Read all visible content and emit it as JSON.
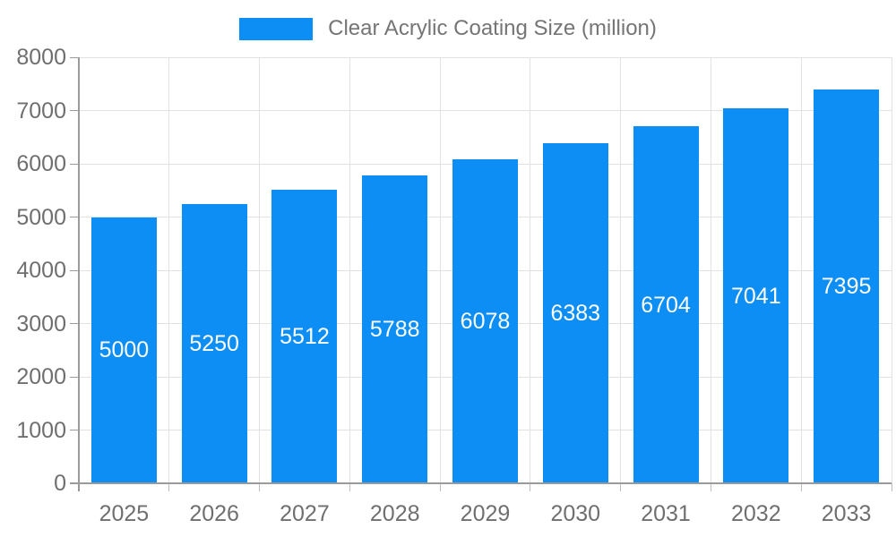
{
  "legend": {
    "label": "Clear Acrylic Coating Size (million)"
  },
  "chart_data": {
    "type": "bar",
    "title": "Clear Acrylic Coating Size (million)",
    "categories": [
      "2025",
      "2026",
      "2027",
      "2028",
      "2029",
      "2030",
      "2031",
      "2032",
      "2033"
    ],
    "values": [
      5000,
      5250,
      5512,
      5788,
      6078,
      6383,
      6704,
      7041,
      7395
    ],
    "xlabel": "",
    "ylabel": "",
    "ylim": [
      0,
      8000
    ],
    "ytick_step": 1000,
    "ytick_labels": [
      "0",
      "1000",
      "2000",
      "3000",
      "4000",
      "5000",
      "6000",
      "7000",
      "8000"
    ],
    "grid": true,
    "legend_position": "top",
    "bar_labels_visible": true,
    "bar_label_position": "center",
    "colors": {
      "bar": "#0d8ef5",
      "bar_label_text": "#ffffff",
      "tick_text": "#6f6f6f",
      "legend_text": "#757575",
      "gridline": "#e2e2e2",
      "axis": "#9a9a9a",
      "background": "#ffffff"
    }
  }
}
